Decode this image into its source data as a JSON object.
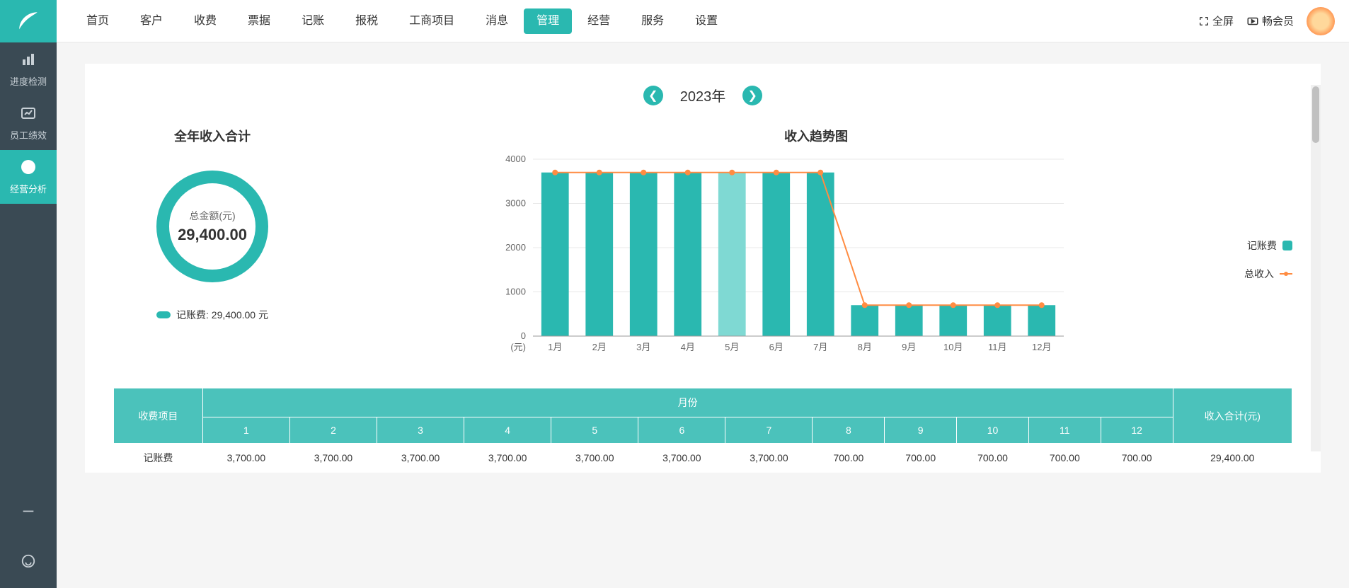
{
  "nav": {
    "items": [
      "首页",
      "客户",
      "收费",
      "票据",
      "记账",
      "报税",
      "工商项目",
      "消息",
      "管理",
      "经营",
      "服务",
      "设置"
    ],
    "active_index": 8,
    "fullscreen": "全屏",
    "member": "畅会员"
  },
  "sidebar": {
    "items": [
      {
        "label": "进度检测",
        "icon": "bar-chart"
      },
      {
        "label": "员工绩效",
        "icon": "trend"
      },
      {
        "label": "经营分析",
        "icon": "pie"
      }
    ],
    "active_index": 2
  },
  "year_selector": {
    "year": "2023年"
  },
  "summary": {
    "title": "全年收入合计",
    "donut_label": "总金额(元)",
    "donut_value": "29,400.00",
    "ring_color": "#2ab8b0",
    "ring_thickness": 18,
    "legend_text": "记账费: 29,400.00 元"
  },
  "trend_chart": {
    "type": "bar+line",
    "title": "收入趋势图",
    "categories": [
      "1月",
      "2月",
      "3月",
      "4月",
      "5月",
      "6月",
      "7月",
      "8月",
      "9月",
      "10月",
      "11月",
      "12月"
    ],
    "bar_values": [
      3700,
      3700,
      3700,
      3700,
      3700,
      3700,
      3700,
      700,
      700,
      700,
      700,
      700
    ],
    "line_values": [
      3700,
      3700,
      3700,
      3700,
      3700,
      3700,
      3700,
      700,
      700,
      700,
      700,
      700
    ],
    "highlight_index": 4,
    "bar_color": "#2ab8b0",
    "bar_highlight_color": "#7fd9d3",
    "line_color": "#ff8c42",
    "ylim": [
      0,
      4000
    ],
    "ytick_step": 1000,
    "y_unit": "(元)",
    "grid_color": "#e8e8e8",
    "axis_color": "#999",
    "background": "#ffffff",
    "label_fontsize": 13,
    "legend": {
      "bar_label": "记账费",
      "line_label": "总收入"
    }
  },
  "table": {
    "col1_header": "收费项目",
    "group_header": "月份",
    "total_header": "收入合计(元)",
    "month_headers": [
      "1",
      "2",
      "3",
      "4",
      "5",
      "6",
      "7",
      "8",
      "9",
      "10",
      "11",
      "12"
    ],
    "rows": [
      {
        "label": "记账费",
        "values": [
          "3,700.00",
          "3,700.00",
          "3,700.00",
          "3,700.00",
          "3,700.00",
          "3,700.00",
          "3,700.00",
          "700.00",
          "700.00",
          "700.00",
          "700.00",
          "700.00"
        ],
        "total": "29,400.00"
      }
    ],
    "header_bg": "#4bc2bb",
    "header_fg": "#ffffff"
  }
}
